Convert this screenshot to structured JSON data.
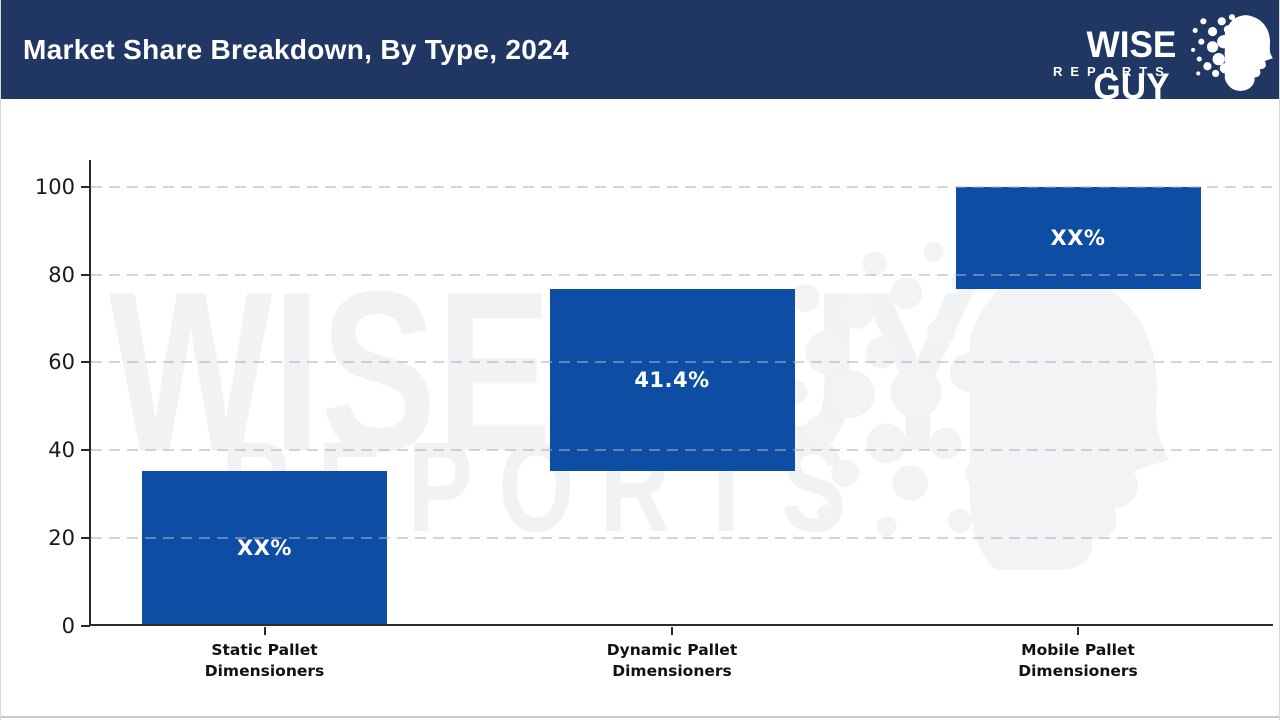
{
  "header": {
    "title": "Market Share Breakdown, By Type, 2024",
    "bg_color": "#203763",
    "logo": {
      "line1": "WISE GUY",
      "line2": "REPORTS",
      "icon": "face-dots-icon"
    }
  },
  "watermark": {
    "line1": "WISE GUY",
    "line2": "REPORTS",
    "icon": "watermark-face-icon"
  },
  "chart_data": {
    "type": "bar",
    "subtype": "waterfall",
    "title": "Market Share Breakdown, By Type, 2024",
    "xlabel": "",
    "ylabel": "",
    "categories": [
      "Static Pallet\nDimensioners",
      "Dynamic Pallet\nDimensioners",
      "Mobile Pallet\nDimensioners"
    ],
    "segments": [
      {
        "category": "Static Pallet Dimensioners",
        "label": "XX%",
        "start": 0,
        "end": 35.3,
        "height": 35.3
      },
      {
        "category": "Dynamic Pallet Dimensioners",
        "label": "41.4%",
        "start": 35.3,
        "end": 76.7,
        "height": 41.4
      },
      {
        "category": "Mobile Pallet Dimensioners",
        "label": "XX%",
        "start": 76.7,
        "end": 100,
        "height": 23.3
      }
    ],
    "yticks": [
      0,
      20,
      40,
      60,
      80,
      100
    ],
    "ylim": [
      0,
      106
    ],
    "grid": "dashed-horizontal-over-bars",
    "legend": "none",
    "bar_color": "#0d4da3",
    "bar_label_color": "#ffffff",
    "grid_color": "#d9dce1",
    "axis_color": "#2b2b2b"
  }
}
